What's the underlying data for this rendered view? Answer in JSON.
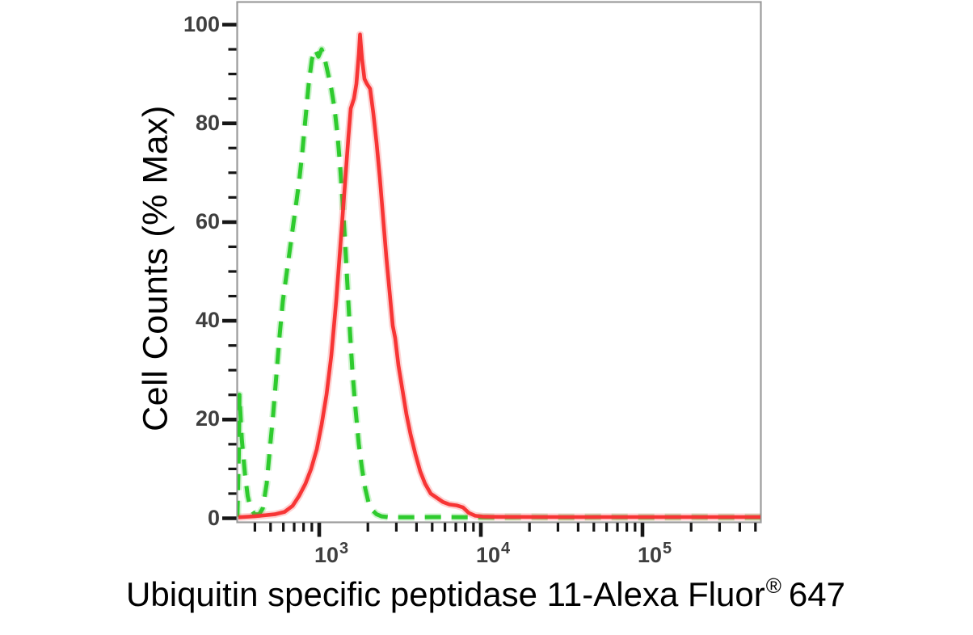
{
  "figure_title": "",
  "colors": {
    "background": "#ffffff",
    "plot_border": "#9b9b9b",
    "tick": "#161616",
    "tick_label": "#3f3f3f",
    "axis_title": "#000000",
    "series_green": "#2ecb2e",
    "series_red": "#f73535"
  },
  "chart_data": {
    "type": "line",
    "title": "",
    "xlabel": "Ubiquitin specific peptidase 11-Alexa Fluor® 647",
    "xlabel_parts": {
      "main": "Ubiquitin specific peptidase 11-Alexa Fluor",
      "sup": "®",
      "suffix": "647"
    },
    "ylabel": "Cell Counts (% Max)",
    "x_scale": "log",
    "xlim": [
      310,
      543000
    ],
    "ylim": [
      0,
      104.5
    ],
    "grid": false,
    "legend": "none",
    "x_major_ticks": [
      1000,
      10000,
      100000
    ],
    "x_major_tick_labels": [
      {
        "base": "10",
        "exp": "3"
      },
      {
        "base": "10",
        "exp": "4"
      },
      {
        "base": "10",
        "exp": "5"
      }
    ],
    "x_minor_ticks_rule": "2-9 per decade, log spaced",
    "y_major_ticks": [
      0,
      20,
      40,
      60,
      80,
      100
    ],
    "y_tick_labels": [
      "0",
      "20",
      "40",
      "60",
      "80",
      "100"
    ],
    "y_minor_tick_step": 5,
    "series": [
      {
        "name": "green-dashed-histogram",
        "line_style": "dashed",
        "color": "#2ecb2e",
        "points": [
          [
            312,
            0.3
          ],
          [
            318,
            13
          ],
          [
            321,
            25
          ],
          [
            332,
            16
          ],
          [
            347,
            9
          ],
          [
            361,
            4.5
          ],
          [
            376,
            2
          ],
          [
            398,
            0.8
          ],
          [
            425,
            0.8
          ],
          [
            447,
            2
          ],
          [
            473,
            7
          ],
          [
            495,
            14
          ],
          [
            519,
            21
          ],
          [
            543,
            29
          ],
          [
            569,
            37
          ],
          [
            596,
            44
          ],
          [
            631,
            50
          ],
          [
            668,
            56
          ],
          [
            708,
            62
          ],
          [
            750,
            68
          ],
          [
            785,
            74
          ],
          [
            822,
            81
          ],
          [
            861,
            88
          ],
          [
            902,
            93
          ],
          [
            944,
            95
          ],
          [
            989,
            93.5
          ],
          [
            1035,
            95
          ],
          [
            1084,
            93
          ],
          [
            1135,
            90
          ],
          [
            1189,
            87
          ],
          [
            1245,
            83
          ],
          [
            1303,
            77
          ],
          [
            1349,
            71
          ],
          [
            1396,
            64
          ],
          [
            1445,
            56
          ],
          [
            1496,
            47
          ],
          [
            1549,
            38
          ],
          [
            1603,
            30
          ],
          [
            1679,
            22
          ],
          [
            1758,
            15
          ],
          [
            1841,
            10
          ],
          [
            1928,
            6
          ],
          [
            2018,
            3.2
          ],
          [
            2138,
            1.6
          ],
          [
            2265,
            0.8
          ],
          [
            2427,
            0.4
          ],
          [
            2661,
            0.25
          ],
          [
            3350,
            0.2
          ],
          [
            5000,
            0.25
          ],
          [
            10590,
            0.2
          ],
          [
            20000,
            0.25
          ],
          [
            33500,
            0.2
          ],
          [
            60000,
            0.25
          ],
          [
            105900,
            0.2
          ],
          [
            200000,
            0.25
          ],
          [
            334970,
            0.2
          ],
          [
            543000,
            0.2
          ]
        ]
      },
      {
        "name": "red-solid-histogram",
        "line_style": "solid",
        "color": "#f73535",
        "points": [
          [
            316,
            0.2
          ],
          [
            398,
            0.4
          ],
          [
            531,
            0.8
          ],
          [
            610,
            1.3
          ],
          [
            684,
            2.5
          ],
          [
            750,
            4.5
          ],
          [
            822,
            7
          ],
          [
            891,
            10
          ],
          [
            966,
            14
          ],
          [
            1035,
            19
          ],
          [
            1109,
            25
          ],
          [
            1189,
            33
          ],
          [
            1274,
            44
          ],
          [
            1365,
            57
          ],
          [
            1445,
            68
          ],
          [
            1514,
            77
          ],
          [
            1567,
            83
          ],
          [
            1641,
            85
          ],
          [
            1698,
            88
          ],
          [
            1758,
            94
          ],
          [
            1789,
            98
          ],
          [
            1841,
            93
          ],
          [
            1905,
            89
          ],
          [
            1972,
            88
          ],
          [
            2065,
            87
          ],
          [
            2163,
            82
          ],
          [
            2265,
            76
          ],
          [
            2371,
            69
          ],
          [
            2483,
            61
          ],
          [
            2600,
            53
          ],
          [
            2723,
            46
          ],
          [
            2851,
            39
          ],
          [
            2951,
            36.5
          ],
          [
            3090,
            31
          ],
          [
            3273,
            26
          ],
          [
            3467,
            21
          ],
          [
            3673,
            17
          ],
          [
            3936,
            13
          ],
          [
            4217,
            9.5
          ],
          [
            4519,
            7
          ],
          [
            4898,
            5
          ],
          [
            5309,
            4.2
          ],
          [
            5821,
            3.3
          ],
          [
            6383,
            2.8
          ],
          [
            7079,
            2.6
          ],
          [
            7762,
            2.2
          ],
          [
            8414,
            1.1
          ],
          [
            9226,
            0.5
          ],
          [
            10230,
            0.35
          ],
          [
            11885,
            0.3
          ],
          [
            33500,
            0.25
          ],
          [
            105900,
            0.25
          ],
          [
            334970,
            0.25
          ],
          [
            543000,
            0.25
          ]
        ]
      }
    ]
  }
}
